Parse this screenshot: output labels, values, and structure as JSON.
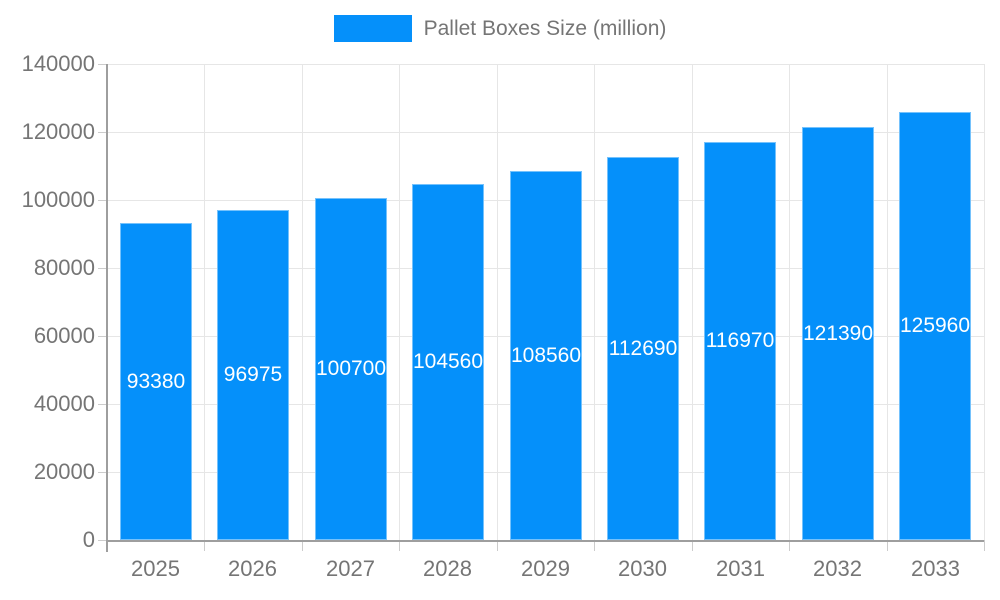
{
  "legend": {
    "label": "Pallet Boxes Size (million)"
  },
  "colors": {
    "bar": "#0590fa",
    "bar_edge": "rgba(255,255,255,0.45)",
    "grid": "#e6e6e6",
    "axis": "#9e9e9e",
    "tick": "#cccccc",
    "text": "#757575",
    "annotation": "#ffffff",
    "background": "#ffffff"
  },
  "chart_data": {
    "type": "bar",
    "title": "",
    "xlabel": "",
    "ylabel": "",
    "categories": [
      "2025",
      "2026",
      "2027",
      "2028",
      "2029",
      "2030",
      "2031",
      "2032",
      "2033"
    ],
    "series": [
      {
        "name": "Pallet Boxes Size (million)",
        "values": [
          93380,
          96975,
          100700,
          104560,
          108560,
          112690,
          116970,
          121390,
          125960
        ]
      }
    ],
    "bar_labels": [
      93380,
      96975,
      100700,
      104560,
      108560,
      112690,
      116970,
      121390,
      125960
    ],
    "ylim": [
      0,
      140000
    ],
    "yticks": [
      0,
      20000,
      40000,
      60000,
      80000,
      100000,
      120000,
      140000
    ],
    "grid": true,
    "legend_position": "top"
  }
}
